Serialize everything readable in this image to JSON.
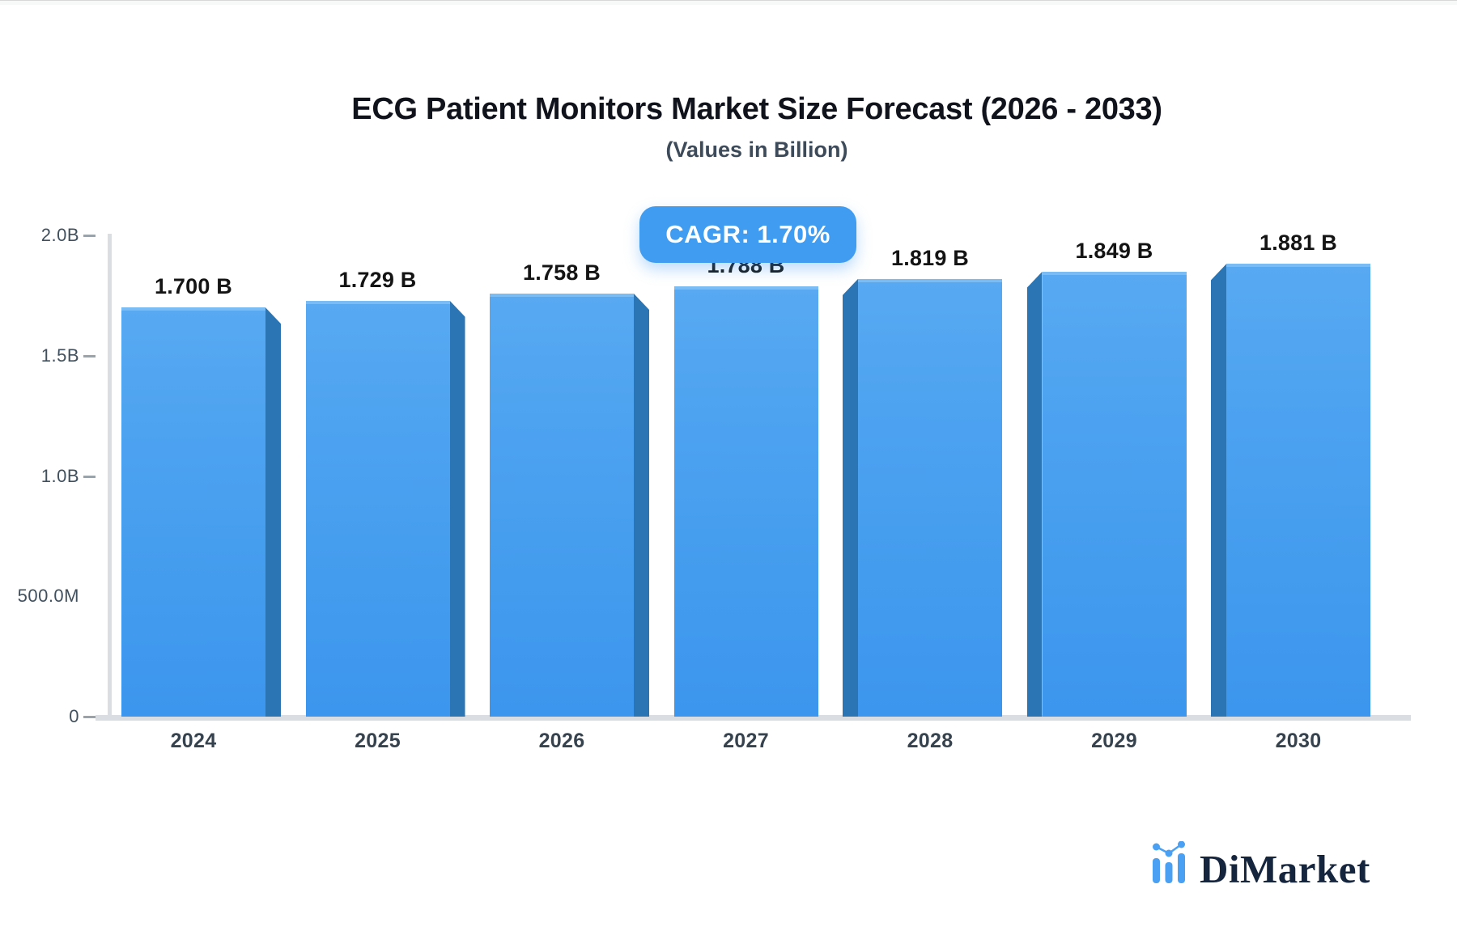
{
  "header": {
    "title": "ECG Patient Monitors Market Size Forecast (2026 - 2033)",
    "subtitle": "(Values in Billion)"
  },
  "cagr_badge": {
    "label": "CAGR: 1.70%"
  },
  "brand": {
    "name": "DiMarket"
  },
  "chart_data": {
    "type": "bar",
    "title": "ECG Patient Monitors Market Size Forecast (2026 - 2033)",
    "subtitle": "(Values in Billion)",
    "annotation": "CAGR: 1.70%",
    "categories": [
      "2024",
      "2025",
      "2026",
      "2027",
      "2028",
      "2029",
      "2030"
    ],
    "values": [
      1.7,
      1.729,
      1.758,
      1.788,
      1.819,
      1.849,
      1.881
    ],
    "value_labels": [
      "1.700 B",
      "1.729 B",
      "1.758 B",
      "1.788 B",
      "1.819 B",
      "1.849 B",
      "1.881 B"
    ],
    "xlabel": "",
    "ylabel": "",
    "ylim": [
      0,
      2.0
    ],
    "y_ticks": [
      {
        "label": "2.0B",
        "value": 2.0,
        "dash": true
      },
      {
        "label": "1.5B",
        "value": 1.5,
        "dash": true
      },
      {
        "label": "1.0B",
        "value": 1.0,
        "dash": true
      },
      {
        "label": "500.0M",
        "value": 0.5,
        "dash": false
      },
      {
        "label": "0",
        "value": 0.0,
        "dash": true
      }
    ],
    "legend": false,
    "grid": false,
    "style": "3d-column",
    "colors": {
      "bar_face_top": "#58a9f2",
      "bar_face_bottom": "#3c96ed",
      "bar_side": "#2b75b5",
      "badge": "#3f9cf1",
      "axis": "#dadde1",
      "brand_blue": "#4aa1f3",
      "brand_navy": "#16253e"
    }
  }
}
